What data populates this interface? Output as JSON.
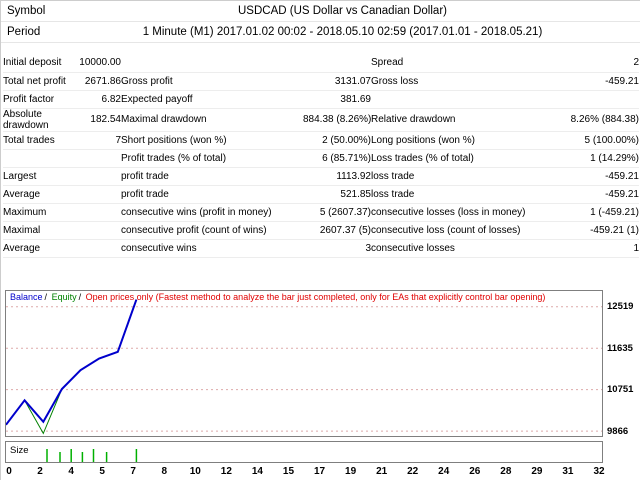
{
  "header": {
    "symbol_label": "Symbol",
    "symbol_value": "USDCAD (US Dollar vs Canadian Dollar)",
    "period_label": "Period",
    "period_value": "1 Minute (M1) 2017.01.02 00:02 - 2018.05.10 02:59 (2017.01.01 - 2018.05.21)"
  },
  "stats_rows": [
    {
      "l1": "Initial deposit",
      "v1": "10000.00",
      "l2": "",
      "v2": "",
      "l3": "Spread",
      "v3": "2"
    },
    {
      "l1": "Total net profit",
      "v1": "2671.86",
      "l2": "Gross profit",
      "v2": "3131.07",
      "l3": "Gross loss",
      "v3": "-459.21"
    },
    {
      "l1": "Profit factor",
      "v1": "6.82",
      "l2": "Expected payoff",
      "v2": "381.69",
      "l3": "",
      "v3": ""
    },
    {
      "l1": "Absolute drawdown",
      "v1": "182.54",
      "l2": "Maximal drawdown",
      "v2": "884.38 (8.26%)",
      "l3": "Relative drawdown",
      "v3": "8.26% (884.38)"
    },
    {
      "l1": "Total trades",
      "v1": "7",
      "l2": "Short positions (won %)",
      "v2": "2 (50.00%)",
      "l3": "Long positions (won %)",
      "v3": "5 (100.00%)"
    },
    {
      "l1": "",
      "v1": "",
      "l2": "Profit trades (% of total)",
      "v2": "6 (85.71%)",
      "l3": "Loss trades (% of total)",
      "v3": "1 (14.29%)"
    },
    {
      "l1": "Largest",
      "v1": "",
      "l2": "profit trade",
      "v2": "1113.92",
      "l3": "loss trade",
      "v3": "-459.21"
    },
    {
      "l1": "Average",
      "v1": "",
      "l2": "profit trade",
      "v2": "521.85",
      "l3": "loss trade",
      "v3": "-459.21"
    },
    {
      "l1": "Maximum",
      "v1": "",
      "l2": "consecutive wins (profit in money)",
      "v2": "5 (2607.37)",
      "l3": "consecutive losses (loss in money)",
      "v3": "1 (-459.21)"
    },
    {
      "l1": "Maximal",
      "v1": "",
      "l2": "consecutive profit (count of wins)",
      "v2": "2607.37 (5)",
      "l3": "consecutive loss (count of losses)",
      "v3": "-459.21 (1)"
    },
    {
      "l1": "Average",
      "v1": "",
      "l2": "consecutive wins",
      "v2": "3",
      "l3": "consecutive losses",
      "v3": "1"
    }
  ],
  "chart": {
    "legend": {
      "balance_label": "Balance",
      "separator": "/",
      "equity_label": "Equity",
      "note": "Open prices only (Fastest method to analyze the bar just completed, only for EAs that explicitly control bar opening)",
      "balance_color": "#0000cc",
      "equity_color": "#008000",
      "note_color": "#e00000"
    },
    "size_label": "Size",
    "grid_color": "#ddaaaa",
    "size_tick_color": "#00b000",
    "y_tick_labels": [
      "12519",
      "11635",
      "10751",
      "9866"
    ],
    "x_tick_labels": [
      "0",
      "2",
      "4",
      "5",
      "7",
      "8",
      "10",
      "12",
      "14",
      "15",
      "17",
      "19",
      "21",
      "22",
      "24",
      "26",
      "28",
      "29",
      "31",
      "32"
    ]
  },
  "chart_data": {
    "type": "line",
    "title": "",
    "xlabel": "",
    "ylabel": "",
    "xlim": [
      0,
      32
    ],
    "ylim": [
      9761,
      12856
    ],
    "y_gridlines": [
      12519,
      11635,
      10751,
      9866
    ],
    "series": [
      {
        "name": "Balance",
        "x": [
          0,
          1,
          2,
          3,
          4,
          5,
          6,
          7
        ],
        "values": [
          10000.0,
          10523.7,
          10064.49,
          10764.49,
          11164.49,
          11414.49,
          11557.94,
          12671.86
        ]
      },
      {
        "name": "Equity",
        "x": [
          0,
          1,
          2,
          3,
          4,
          5,
          6,
          7
        ],
        "values": [
          10000.0,
          10523.7,
          9817.46,
          10764.49,
          11164.49,
          11414.49,
          11557.94,
          12671.86
        ]
      }
    ],
    "size_ticks_x": [
      2.2,
      2.9,
      3.5,
      4.1,
      4.7,
      5.4,
      7.0
    ],
    "size_ticks_h": [
      13,
      10,
      13,
      10,
      13,
      10,
      13
    ],
    "legend_position": "top-left",
    "grid": "horizontal-dotted"
  }
}
